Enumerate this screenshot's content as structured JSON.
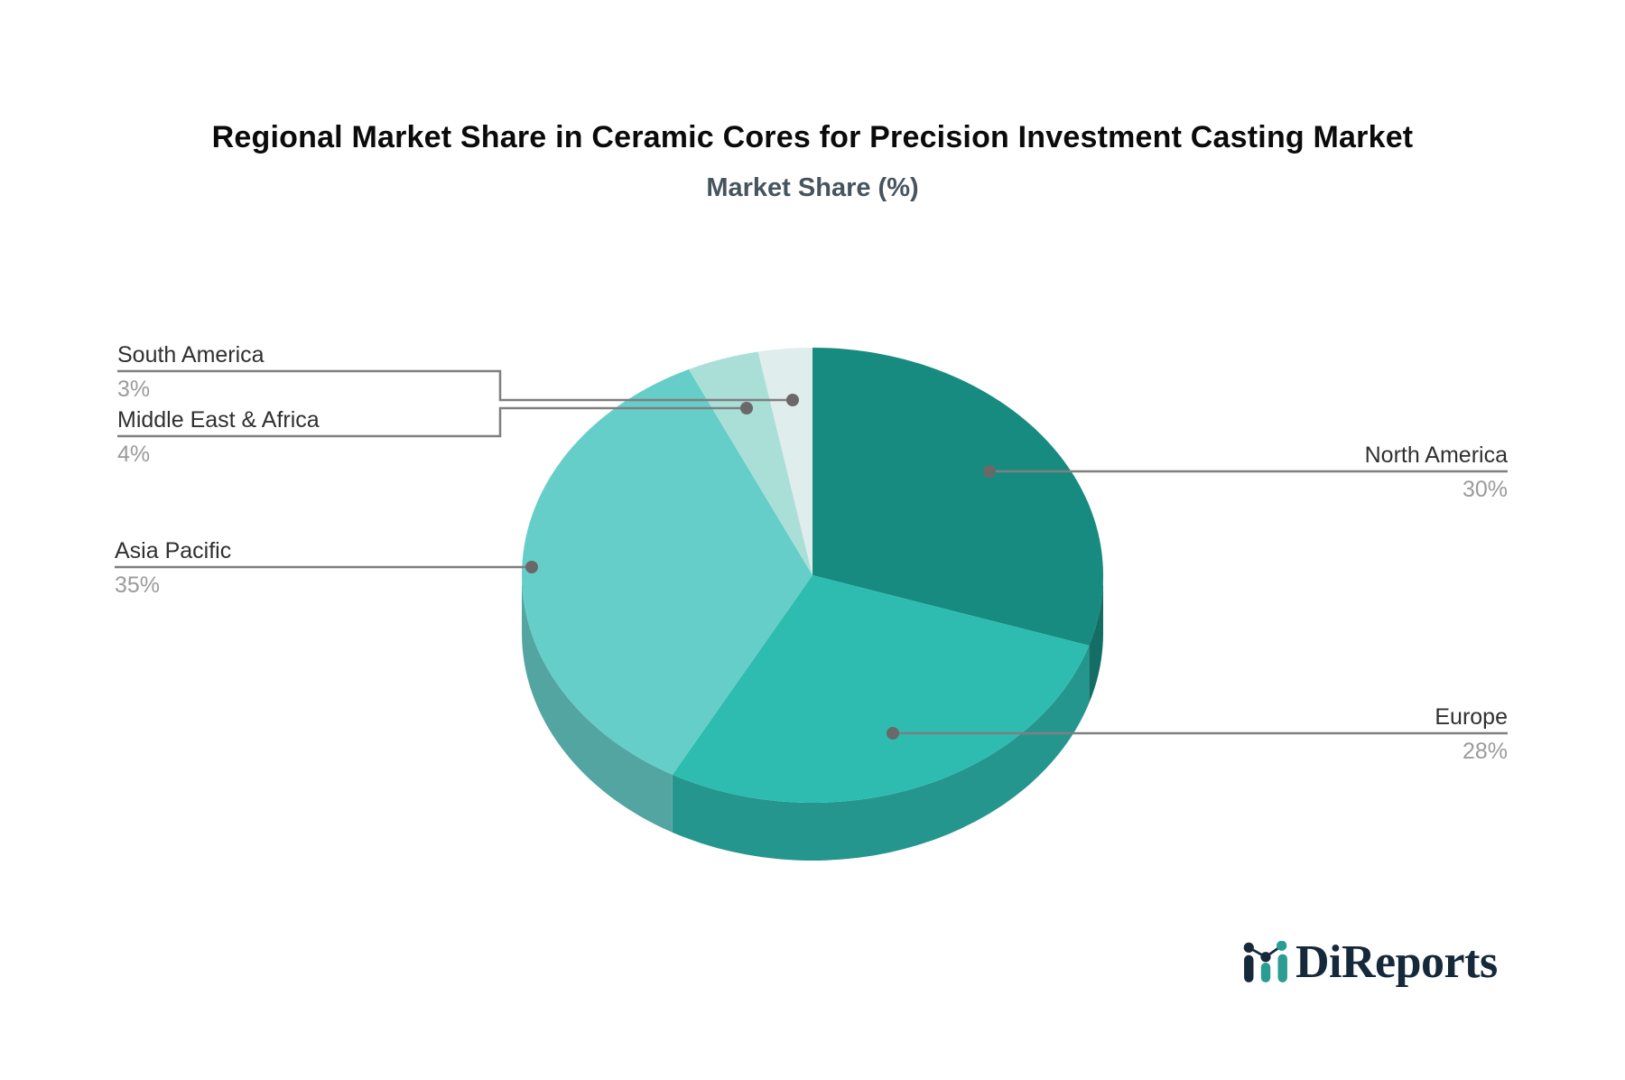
{
  "chart_data": {
    "type": "pie",
    "style": "3d",
    "title": "Regional Market Share in Ceramic Cores for Precision Investment Casting Market",
    "subtitle": "Market Share (%)",
    "unit": "%",
    "start_angle": "12 o'clock",
    "direction": "clockwise",
    "slices": [
      {
        "label": "North America",
        "value": 30,
        "value_label": "30%",
        "color": "#188b80"
      },
      {
        "label": "Europe",
        "value": 28,
        "value_label": "28%",
        "color": "#2ebcb1"
      },
      {
        "label": "Asia Pacific",
        "value": 35,
        "value_label": "35%",
        "color": "#66cec8"
      },
      {
        "label": "Middle East & Africa",
        "value": 4,
        "value_label": "4%",
        "color": "#aadfd8"
      },
      {
        "label": "South America",
        "value": 3,
        "value_label": "3%",
        "color": "#dfeeec"
      }
    ],
    "legend": "callout-labels",
    "connector_color": "#7f7f7f",
    "label_color": "#303030",
    "value_color": "#9b9b9b"
  },
  "logo": {
    "brand": "DiReports"
  }
}
